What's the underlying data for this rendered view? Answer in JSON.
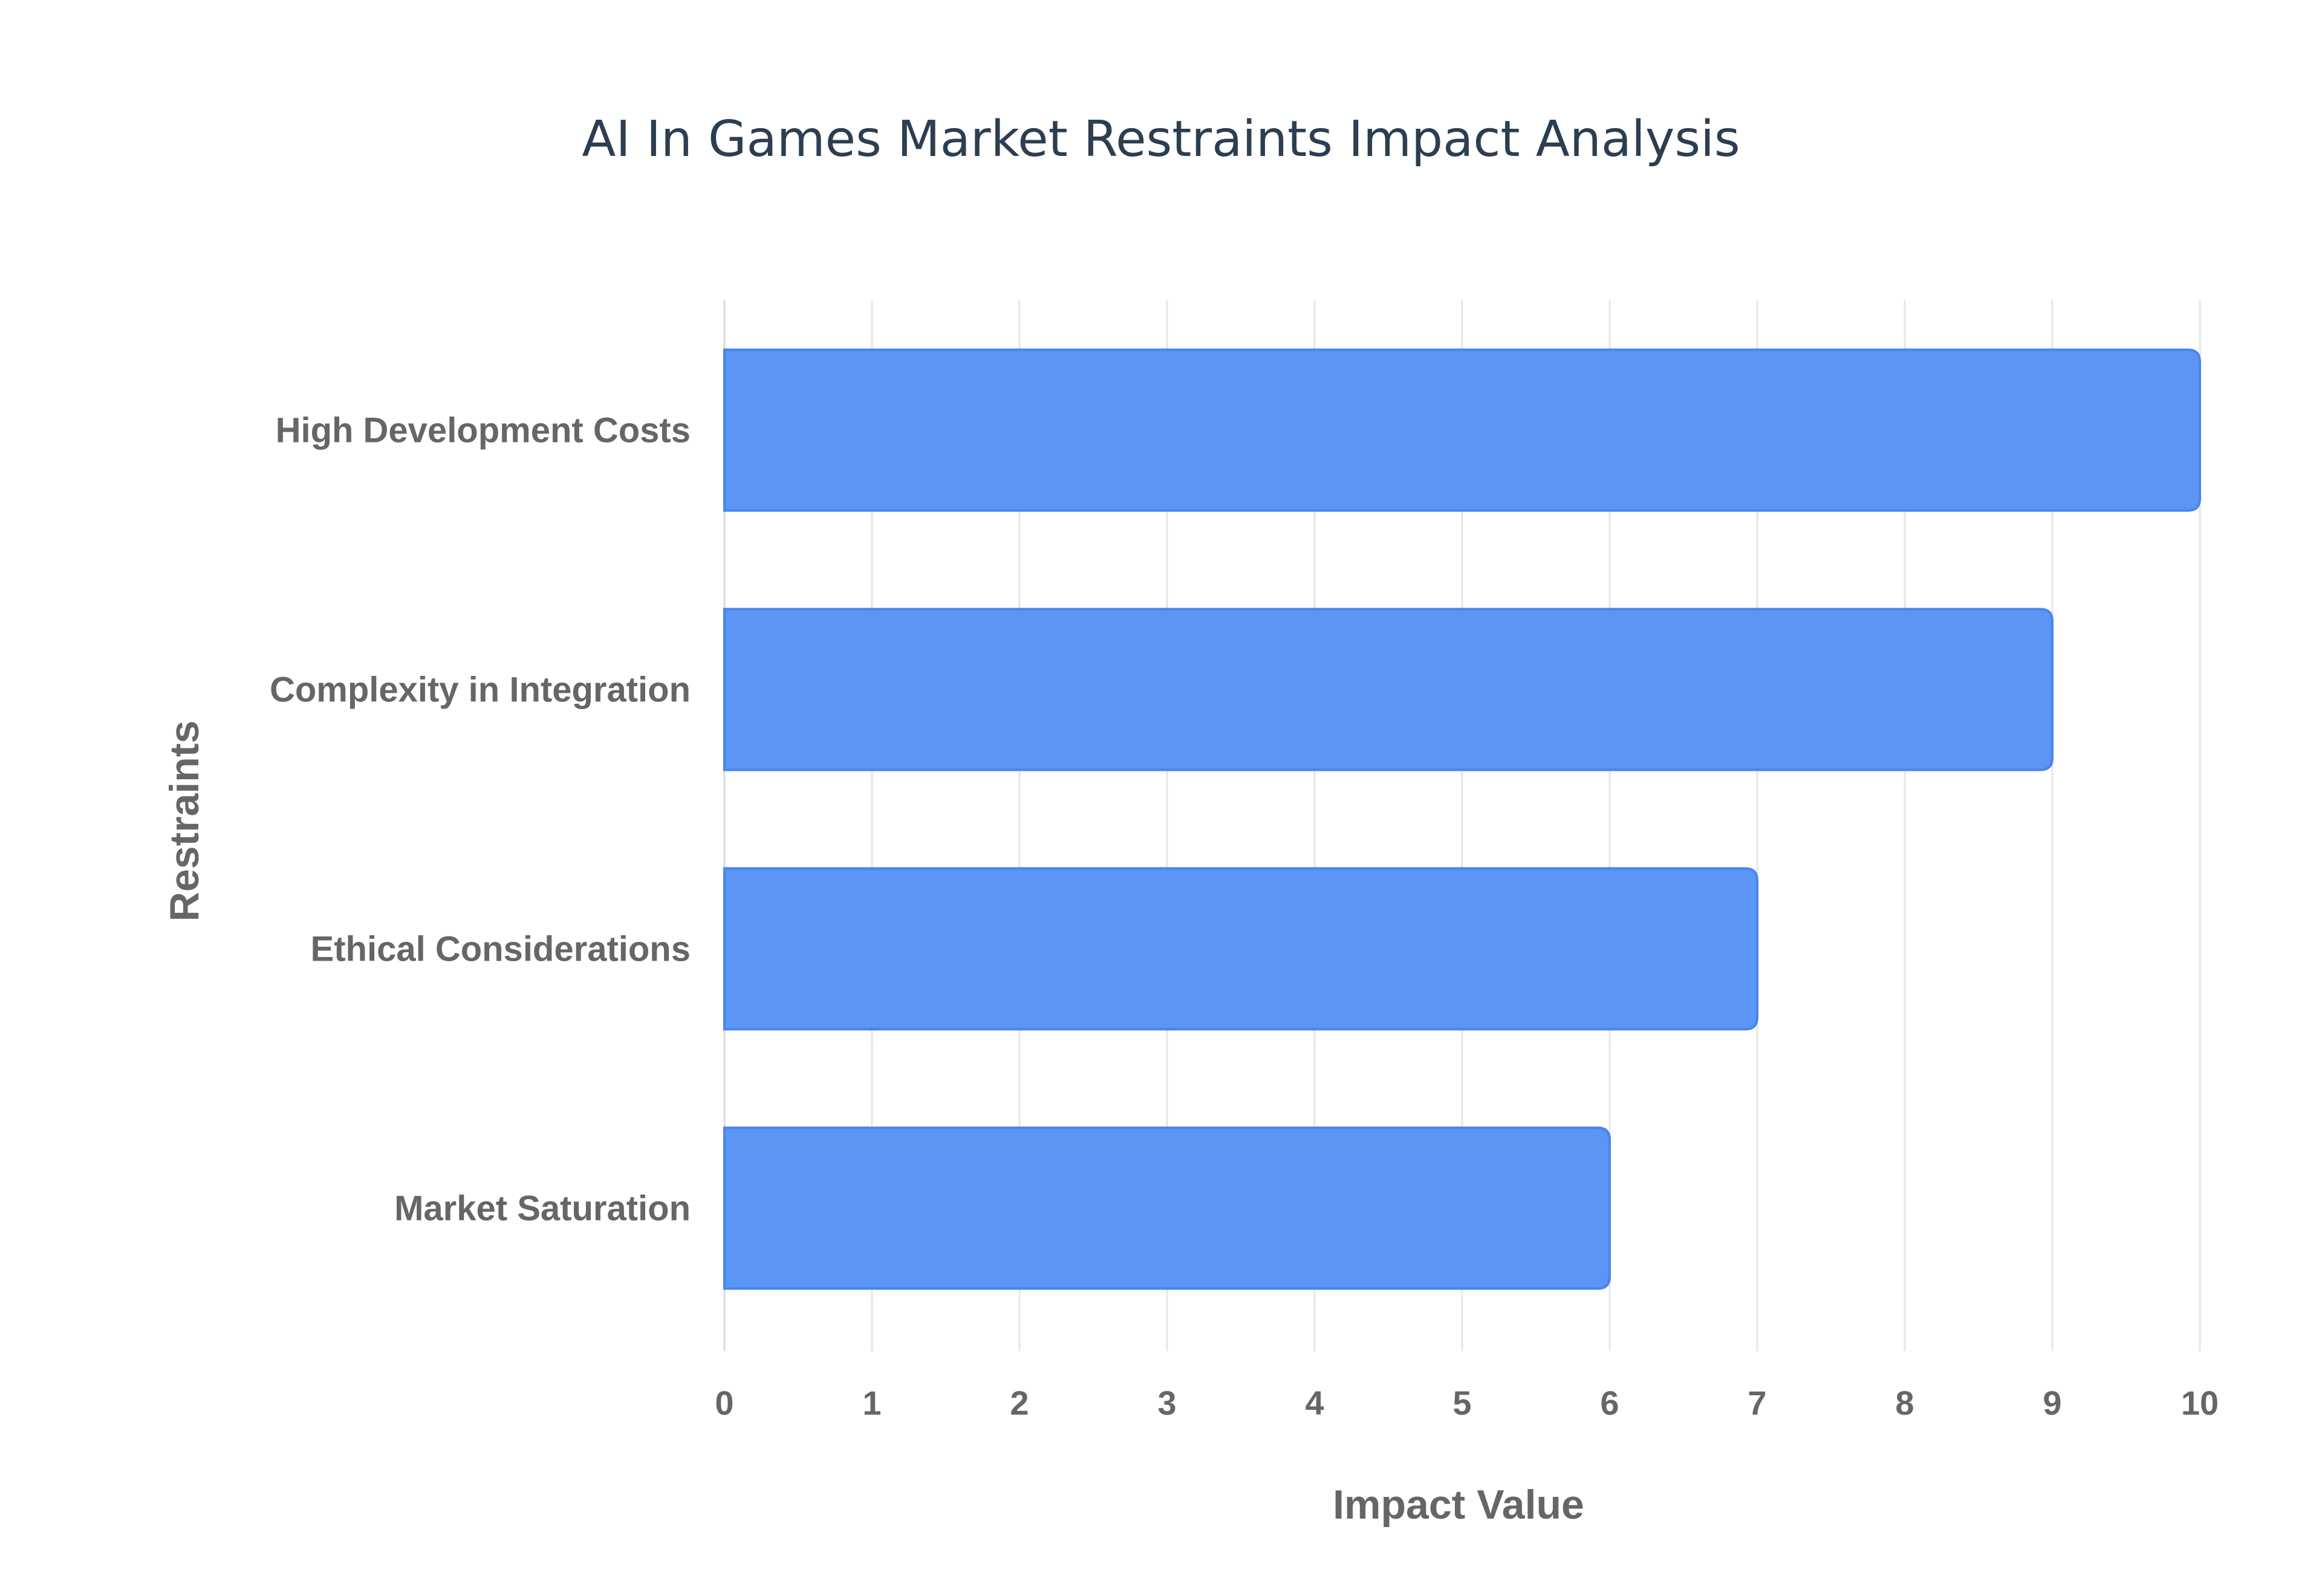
{
  "chart_data": {
    "type": "bar",
    "orientation": "horizontal",
    "title": "AI In Games Market Restraints Impact Analysis",
    "xlabel": "Impact Value",
    "ylabel": "Restraints",
    "categories": [
      "High Development Costs",
      "Complexity in Integration",
      "Ethical Considerations",
      "Market Saturation"
    ],
    "values": [
      10,
      9,
      7,
      6
    ],
    "xlim": [
      0,
      10
    ],
    "xticks": [
      "0",
      "1",
      "2",
      "3",
      "4",
      "5",
      "6",
      "7",
      "8",
      "9",
      "10"
    ],
    "grid": true,
    "legend": "none",
    "colors": {
      "bar_fill": "#5b95f5",
      "bar_stroke": "#4a84ec",
      "title": "#2c3e50",
      "label": "#666666",
      "grid": "#e6e6e6"
    }
  }
}
